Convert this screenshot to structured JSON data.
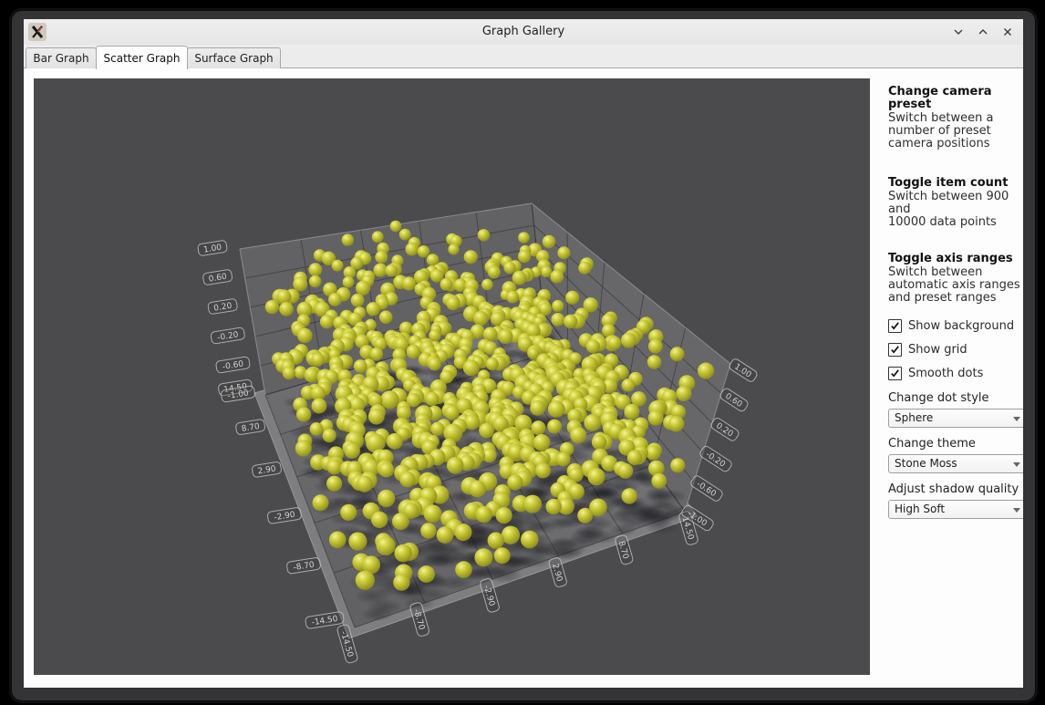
{
  "window": {
    "title": "Graph Gallery",
    "icon": "xorg-logo",
    "controls": {
      "minimize": "chevron-down",
      "maximize": "chevron-up",
      "close": "x"
    }
  },
  "tabs": [
    {
      "label": "Bar Graph",
      "active": false
    },
    {
      "label": "Scatter Graph",
      "active": true
    },
    {
      "label": "Surface Graph",
      "active": false
    }
  ],
  "panel": {
    "buttons": [
      {
        "title": "Change camera preset",
        "description": "Switch between a\nnumber of preset\ncamera positions"
      },
      {
        "title": "Toggle item count",
        "description": "Switch between 900 and\n10000 data points"
      },
      {
        "title": "Toggle axis ranges",
        "description": "Switch between\nautomatic axis ranges\nand preset ranges"
      }
    ],
    "checkboxes": [
      {
        "label": "Show background",
        "checked": true
      },
      {
        "label": "Show grid",
        "checked": true
      },
      {
        "label": "Smooth dots",
        "checked": true
      }
    ],
    "selects": [
      {
        "label": "Change dot style",
        "value": "Sphere"
      },
      {
        "label": "Change theme",
        "value": "Stone Moss"
      },
      {
        "label": "Adjust shadow quality",
        "value": "High Soft"
      }
    ]
  },
  "chart_data": {
    "type": "scatter",
    "projection": "3d",
    "title": "",
    "x_ticks": [
      "-14.50",
      "-8.70",
      "-2.90",
      "2.90",
      "8.70",
      "14.50"
    ],
    "z_ticks": [
      "-14.50",
      "-8.70",
      "-2.90",
      "2.90",
      "8.70",
      "14.50"
    ],
    "y_ticks": [
      "-1.00",
      "-0.60",
      "-0.20",
      "0.20",
      "0.60",
      "1.00"
    ],
    "x_range": [
      -14.5,
      14.5
    ],
    "y_range": [
      -1.0,
      1.0
    ],
    "z_range": [
      -14.5,
      14.5
    ],
    "point_count": 900,
    "visible_random_points": 680,
    "chain_points": 26,
    "theme": "Stone Moss",
    "grid": true,
    "background_shown": true,
    "colors": {
      "plot_background": "#4b4b4d",
      "floor_back": "#7a7a7d",
      "floor_front": "#616164",
      "wall_left": "#626265",
      "wall_right": "#67676a",
      "rim": "#7e7e81",
      "grid_line": "#2e2e30",
      "dot": "#b2b22a",
      "dot_highlight": "#f2f2a0",
      "dot_dark": "#77771a",
      "tick_text": "#d4d4d4"
    },
    "seed": 911
  }
}
